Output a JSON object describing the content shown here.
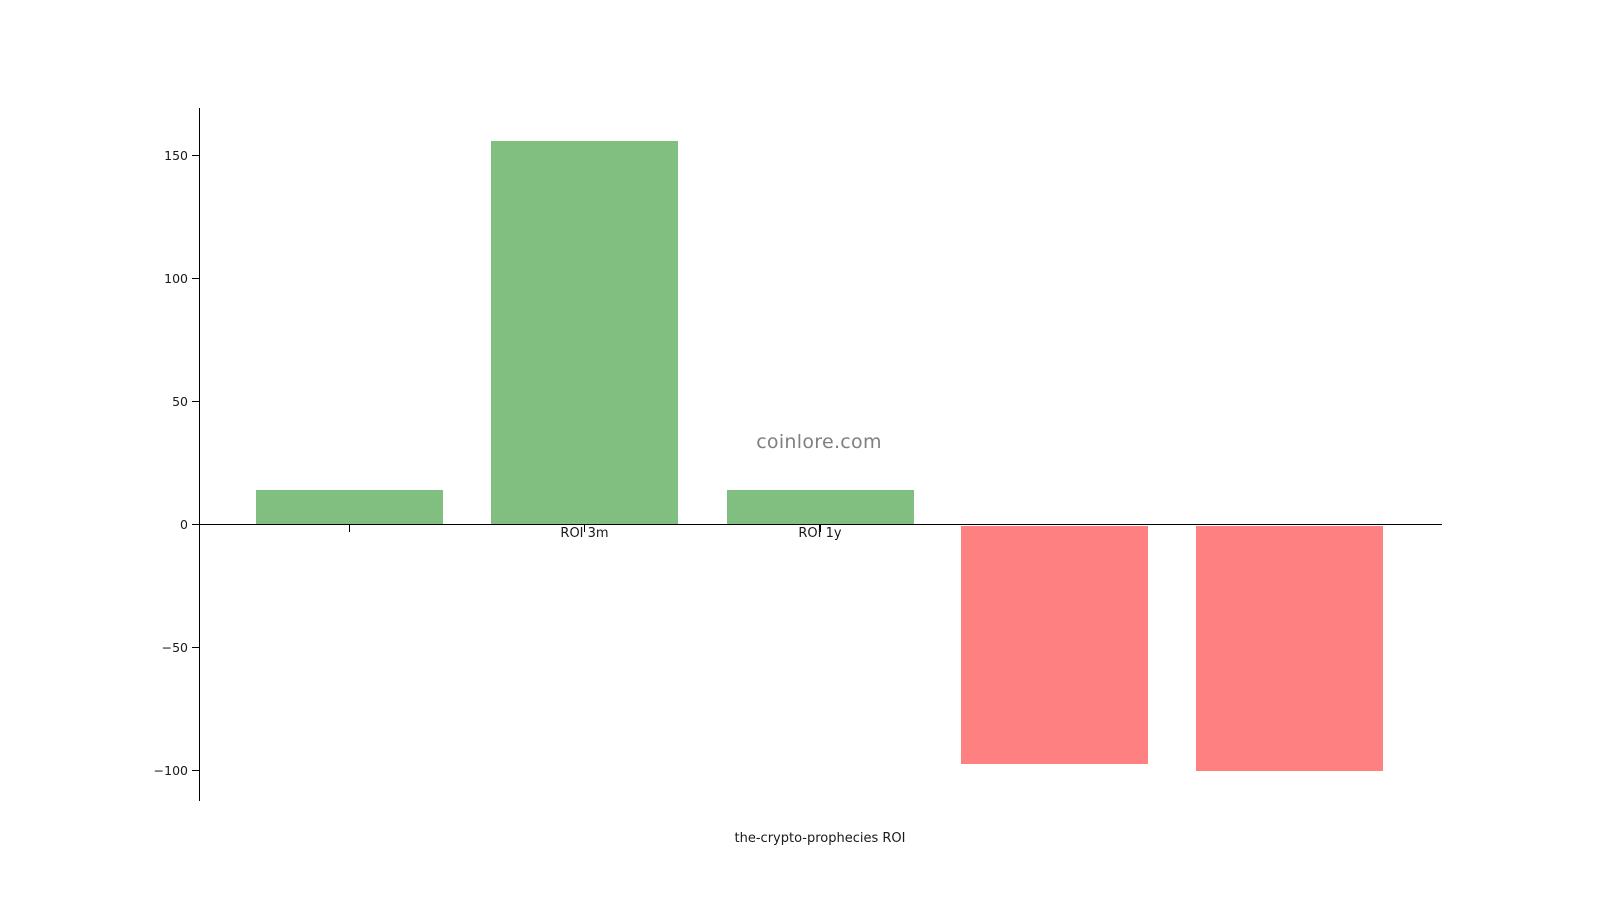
{
  "page": {
    "background": "#ffffff"
  },
  "watermark": {
    "text": "coinlore.com",
    "color": "#808080"
  },
  "chart_data": {
    "type": "bar",
    "title": "the-crypto-prophecies ROI",
    "categories": [
      "",
      "ROI 3m",
      "ROI 1y",
      "",
      ""
    ],
    "values": [
      14,
      156,
      14,
      -97,
      -100
    ],
    "bar_colors": [
      "#80bf80",
      "#80bf80",
      "#80bf80",
      "#ff8080",
      "#ff8080"
    ],
    "positive_color": "#80bf80",
    "negative_color": "#ff8080",
    "yticks": [
      150,
      100,
      50,
      0,
      -50,
      -100
    ],
    "ytick_labels": [
      "150",
      "100",
      "50",
      "0",
      "−50",
      "−100"
    ],
    "ylim": [
      -112.5,
      169.5
    ],
    "xtick_marks": [
      true,
      true,
      true,
      false,
      false
    ],
    "xlabel": "",
    "ylabel": "",
    "grid": false,
    "legend": null,
    "axis_color": "#000000",
    "text_color": "#1a1a1a"
  }
}
